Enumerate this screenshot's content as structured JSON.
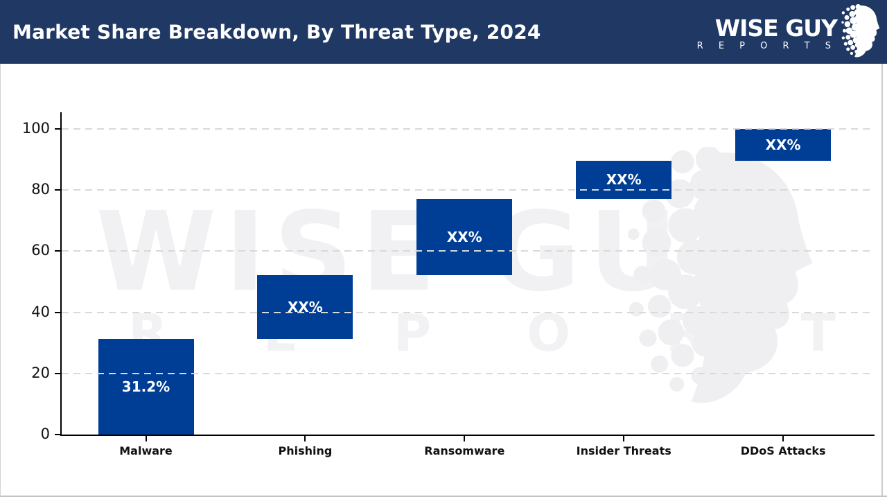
{
  "header": {
    "title": "Market Share Breakdown, By Threat Type, 2024",
    "logo": {
      "name": "WISE GUY",
      "subtext": "R E P O R T S"
    }
  },
  "watermark": {
    "line1": "WISE GUY",
    "line2": "R E P O R T S"
  },
  "chart_data": {
    "type": "bar",
    "subtype": "floating-waterfall",
    "title": "Market Share Breakdown, By Threat Type, 2024",
    "categories": [
      "Malware",
      "Phishing",
      "Ransomware",
      "Insider Threats",
      "DDoS Attacks"
    ],
    "segments": [
      {
        "from": 0,
        "to": 31.2
      },
      {
        "from": 31.2,
        "to": 52.2
      },
      {
        "from": 52.2,
        "to": 77.2
      },
      {
        "from": 77.2,
        "to": 89.5
      },
      {
        "from": 89.5,
        "to": 100
      }
    ],
    "bar_labels": [
      "31.2%",
      "XX%",
      "XX%",
      "XX%",
      "XX%"
    ],
    "xlabel": "",
    "ylabel": "",
    "ylim": [
      0,
      105
    ],
    "yticks": [
      0,
      20,
      40,
      60,
      80,
      100
    ],
    "grid": "horizontal-dashed-over-bars",
    "legend": "none",
    "colors": {
      "bar": "#003d94",
      "grid": "#d9d9d9",
      "axis": "#000000",
      "value_label": "#ffffff",
      "tick_label": "#111111"
    }
  },
  "colors": {
    "header_bg": "#1f3864",
    "page_bg": "#ffffff",
    "watermark": "#f1f1f3",
    "frame": "#c3c3c3"
  }
}
